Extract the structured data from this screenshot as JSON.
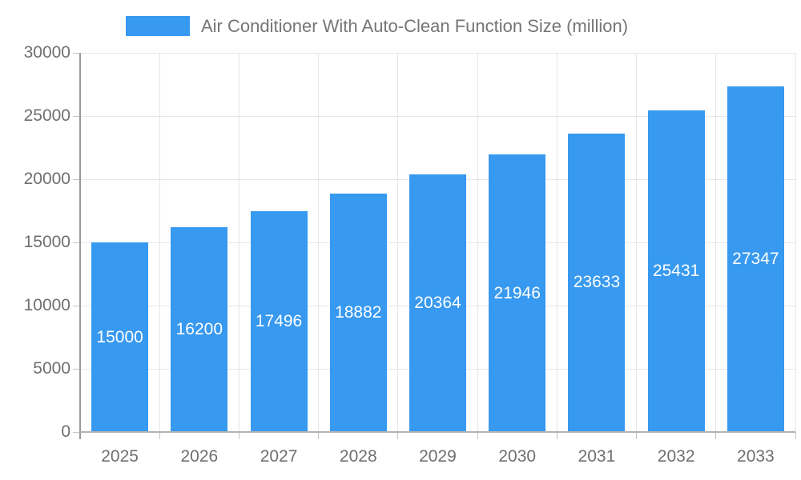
{
  "legend": {
    "label": "Air Conditioner With Auto-Clean Function Size (million)"
  },
  "chart_data": {
    "type": "bar",
    "title": "Air Conditioner With Auto-Clean Function Size (million)",
    "categories": [
      "2025",
      "2026",
      "2027",
      "2028",
      "2029",
      "2030",
      "2031",
      "2032",
      "2033"
    ],
    "series": [
      {
        "name": "Air Conditioner With Auto-Clean Function Size (million)",
        "values": [
          15000,
          16200,
          17496,
          18882,
          20364,
          21946,
          23633,
          25431,
          27347
        ]
      }
    ],
    "value_labels": [
      "15000",
      "16200",
      "17496",
      "18882",
      "20364",
      "21946",
      "23633",
      "25431",
      "27347"
    ],
    "xlabel": "",
    "ylabel": "",
    "ylim": [
      0,
      30000
    ],
    "ytick_labels": [
      "0",
      "5000",
      "10000",
      "15000",
      "20000",
      "25000",
      "30000"
    ],
    "ytick_values": [
      0,
      5000,
      10000,
      15000,
      20000,
      25000,
      30000
    ],
    "grid": "on",
    "legend_position": "top-left",
    "colors": {
      "bar": "#3799F0",
      "value_label_text": "#ffffff",
      "legend_text": "#757575",
      "axis_label_text": "#6f6f6f",
      "gridline": "#e6e6e6",
      "axis_line": "#9a9a9a",
      "background": "#ffffff"
    }
  }
}
